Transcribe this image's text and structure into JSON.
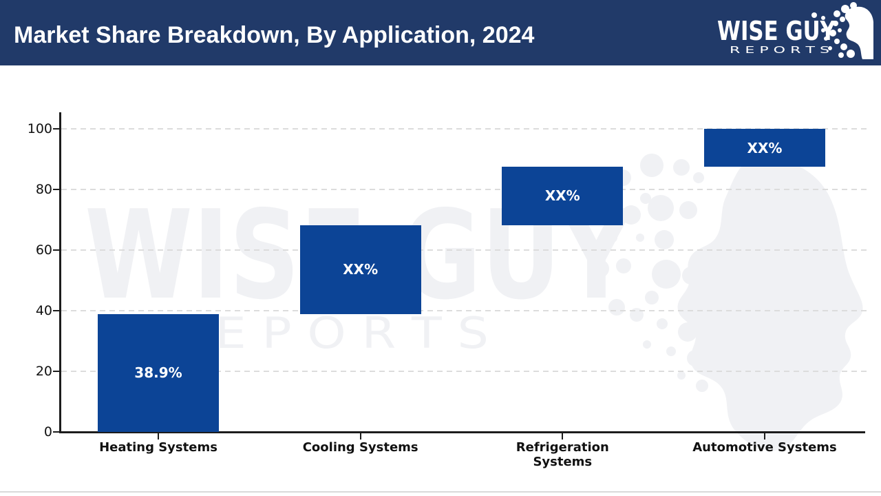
{
  "header": {
    "title": "Market Share Breakdown, By Application, 2024",
    "logo": {
      "name": "WISE GUY",
      "tagline": "R E P O R T S"
    }
  },
  "watermark": {
    "line1": "WISE GUY",
    "line2": "R E P O R T S"
  },
  "chart_data": {
    "type": "bar",
    "subtype": "waterfall-style stacked market share breakdown",
    "title": "Market Share Breakdown, By Application, 2024",
    "categories": [
      "Heating Systems",
      "Cooling Systems",
      "Refrigeration\nSystems",
      "Automotive Systems"
    ],
    "segments": [
      {
        "category": "Heating Systems",
        "from": 0,
        "to": 38.9,
        "label": "38.9%"
      },
      {
        "category": "Cooling Systems",
        "from": 38.9,
        "to": 68.2,
        "label": "XX%"
      },
      {
        "category": "Refrigeration Systems",
        "from": 68.2,
        "to": 87.5,
        "label": "XX%"
      },
      {
        "category": "Automotive Systems",
        "from": 87.5,
        "to": 100,
        "label": "XX%"
      }
    ],
    "xlabel": "",
    "ylabel": "",
    "yticks": [
      0,
      20,
      40,
      60,
      80,
      100
    ],
    "ylim": [
      0,
      100
    ],
    "grid": {
      "horizontal": true,
      "style": "dashed"
    },
    "legend": "none",
    "colors": {
      "bar": "#0c4496",
      "bar_label": "#ffffff",
      "grid": "#dcdcdc",
      "axis": "#1c1c1c",
      "header_bg": "#213a69",
      "watermark": "#f0f1f4"
    }
  }
}
